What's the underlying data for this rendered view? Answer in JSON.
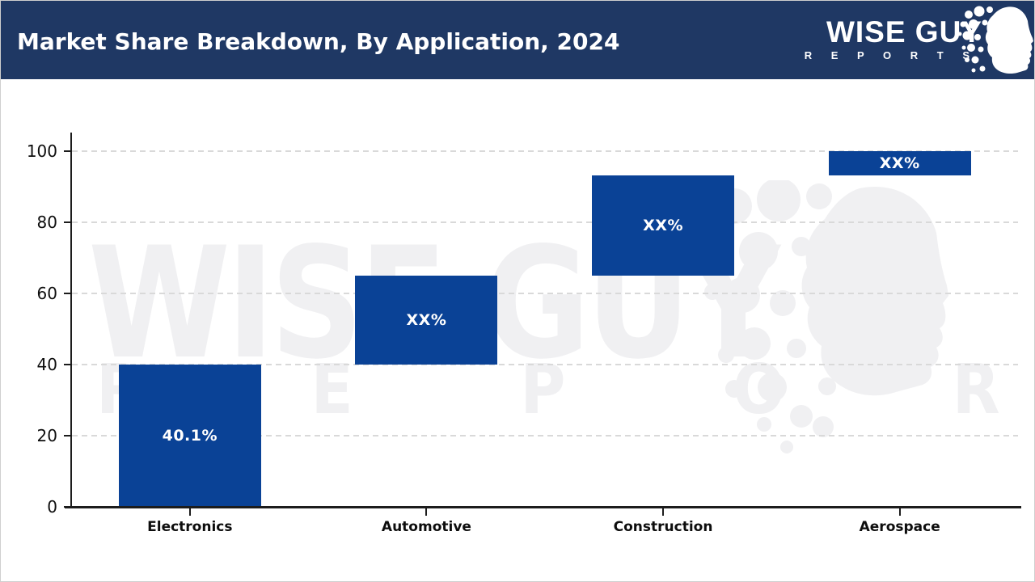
{
  "header": {
    "title": "Market Share Breakdown, By Application, 2024",
    "logo": {
      "line1": "WISE GUY",
      "line2": "R E P O R T S"
    }
  },
  "watermark": {
    "line1": "WISE GUY",
    "line2": "R E P O R T S"
  },
  "chart_data": {
    "type": "bar",
    "subtype": "floating-waterfall",
    "title": "Market Share Breakdown, By Application, 2024",
    "categories": [
      "Electronics",
      "Automotive",
      "Construction",
      "Aerospace"
    ],
    "bars": [
      {
        "category": "Electronics",
        "label": "40.1%",
        "start": 0,
        "end": 40.1
      },
      {
        "category": "Automotive",
        "label": "XX%",
        "start": 40.1,
        "end": 65.1
      },
      {
        "category": "Construction",
        "label": "XX%",
        "start": 65.1,
        "end": 93.1
      },
      {
        "category": "Aerospace",
        "label": "XX%",
        "start": 93.1,
        "end": 100
      }
    ],
    "xlabel": "",
    "ylabel": "",
    "ylim": [
      0,
      105
    ],
    "yticks": [
      0,
      20,
      40,
      60,
      80,
      100
    ],
    "grid": "horizontal-dashed",
    "legend": "none"
  },
  "colors": {
    "header_bg": "#1f3864",
    "bar": "#0a4296",
    "bar_label": "#ffffff",
    "watermark": "#f0f0f2",
    "grid": "#d9d9d9",
    "axis": "#1c1c1c",
    "page_bg": "#ffffff"
  }
}
